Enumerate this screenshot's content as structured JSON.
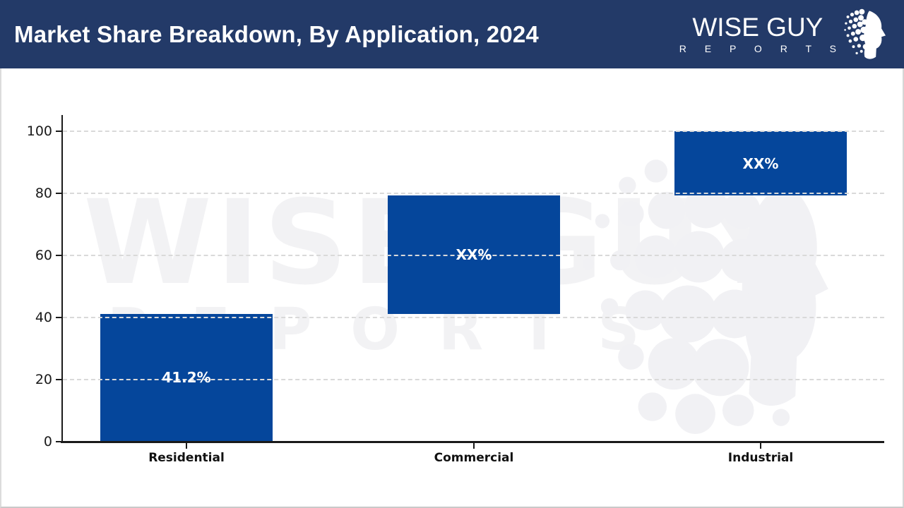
{
  "header": {
    "title": "Market Share Breakdown, By Application, 2024",
    "bg_color": "#233a68",
    "logo": {
      "line1": "WISE GUY",
      "line2": "R E P O R T S"
    }
  },
  "watermark": {
    "line1": "WISE GUY",
    "line2": "REPORTS"
  },
  "chart_data": {
    "type": "bar",
    "subtype": "floating-waterfall-market-share",
    "title": "Market Share Breakdown, By Application, 2024",
    "xlabel": "",
    "ylabel": "",
    "categories": [
      "Residential",
      "Commercial",
      "Industrial"
    ],
    "series": [
      {
        "name": "Market share (%)",
        "segments": [
          {
            "category": "Residential",
            "start": 0,
            "end": 41.2,
            "label": "41.2%"
          },
          {
            "category": "Commercial",
            "start": 41.2,
            "end": 79.3,
            "label": "XX%"
          },
          {
            "category": "Industrial",
            "start": 79.3,
            "end": 100,
            "label": "XX%"
          }
        ]
      }
    ],
    "yticks": [
      0,
      20,
      40,
      60,
      80,
      100
    ],
    "ylim": [
      0,
      100
    ],
    "grid": "horizontal dashed, drawn over bars",
    "legend": "none",
    "bar_color": "#05469b",
    "bar_label_color": "#ffffff",
    "gridline_color": "#d9d9d9",
    "axis_color": "#1a1a1a"
  }
}
